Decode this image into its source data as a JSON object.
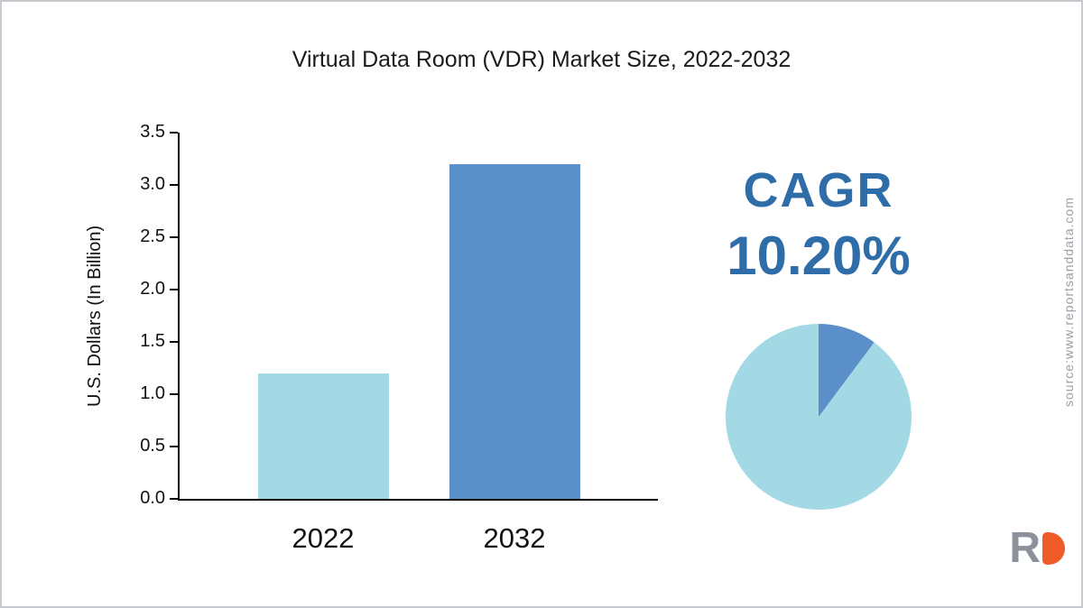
{
  "title": "Virtual Data Room (VDR) Market Size, 2022-2032",
  "chart_data": {
    "type": "bar",
    "categories": [
      "2022",
      "2032"
    ],
    "values": [
      1.2,
      3.2
    ],
    "title": "Virtual Data Room (VDR) Market Size, 2022-2032",
    "xlabel": "",
    "ylabel": "U.S. Dollars (In Billion)",
    "ylim": [
      0,
      3.5
    ],
    "yticks": [
      0.0,
      0.5,
      1.0,
      1.5,
      2.0,
      2.5,
      3.0,
      3.5
    ],
    "bar_colors": [
      "#a3d9e5",
      "#5b8fc9"
    ],
    "grid": false,
    "legend": false
  },
  "cagr": {
    "label": "CAGR",
    "value": "10.20%",
    "percent": 10.2,
    "text_color": "#2e6da8"
  },
  "pie": {
    "slice_percent": 10.2,
    "slice_color": "#5b8fc9",
    "rest_color": "#a3d9e5"
  },
  "source": "source:www.reportsanddata.com",
  "logo": {
    "letter_r": "R",
    "r_color": "#8b929b",
    "d_color": "#ee5a28"
  }
}
